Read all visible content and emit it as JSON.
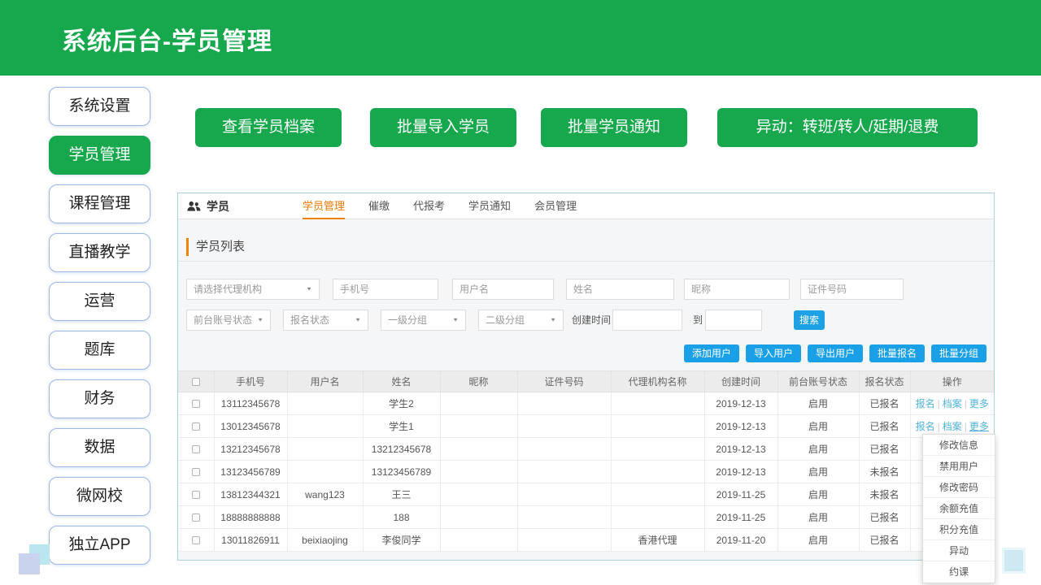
{
  "header": {
    "title": "系统后台-学员管理"
  },
  "sidebar": {
    "items": [
      {
        "label": "系统设置",
        "active": false
      },
      {
        "label": "学员管理",
        "active": true
      },
      {
        "label": "课程管理",
        "active": false
      },
      {
        "label": "直播教学",
        "active": false
      },
      {
        "label": "运营",
        "active": false
      },
      {
        "label": "题库",
        "active": false
      },
      {
        "label": "财务",
        "active": false
      },
      {
        "label": "数据",
        "active": false
      },
      {
        "label": "微网校",
        "active": false
      },
      {
        "label": "独立APP",
        "active": false
      }
    ]
  },
  "quick_actions": {
    "view_archive": "查看学员档案",
    "batch_import": "批量导入学员",
    "batch_notify": "批量学员通知",
    "change": "异动：转班/转人/延期/退费"
  },
  "panel": {
    "module_label": "学员",
    "tabs": [
      {
        "label": "学员管理",
        "active": true
      },
      {
        "label": "催缴",
        "active": false
      },
      {
        "label": "代报考",
        "active": false
      },
      {
        "label": "学员通知",
        "active": false
      },
      {
        "label": "会员管理",
        "active": false
      }
    ],
    "section_title": "学员列表",
    "filters": {
      "agency_select": "请选择代理机构",
      "phone_placeholder": "手机号",
      "username_placeholder": "用户名",
      "name_placeholder": "姓名",
      "nickname_placeholder": "昵称",
      "cert_placeholder": "证件号码",
      "account_status_select": "前台账号状态",
      "reg_status_select": "报名状态",
      "group1_select": "一级分组",
      "group2_select": "二级分组",
      "created_label": "创建时间",
      "to_label": "到",
      "search_button": "搜索"
    },
    "bulk_buttons": [
      "添加用户",
      "导入用户",
      "导出用户",
      "批量报名",
      "批量分组"
    ],
    "table": {
      "columns": [
        "手机号",
        "用户名",
        "姓名",
        "昵称",
        "证件号码",
        "代理机构名称",
        "创建时间",
        "前台账号状态",
        "报名状态",
        "操作"
      ],
      "rows": [
        {
          "phone": "13112345678",
          "username": "",
          "name": "学生2",
          "nickname": "",
          "cert_no": "",
          "agency": "",
          "created": "2019-12-13",
          "account_status": "启用",
          "reg_status": "已报名",
          "reg_red": false,
          "actions": [
            "报名",
            "档案",
            "更多"
          ],
          "more_active": false
        },
        {
          "phone": "13012345678",
          "username": "",
          "name": "学生1",
          "nickname": "",
          "cert_no": "",
          "agency": "",
          "created": "2019-12-13",
          "account_status": "启用",
          "reg_status": "已报名",
          "reg_red": false,
          "actions": [
            "报名",
            "档案",
            "更多"
          ],
          "more_active": true
        },
        {
          "phone": "13212345678",
          "username": "",
          "name": "13212345678",
          "nickname": "",
          "cert_no": "",
          "agency": "",
          "created": "2019-12-13",
          "account_status": "启用",
          "reg_status": "已报名",
          "reg_red": false,
          "actions": [],
          "more_active": false
        },
        {
          "phone": "13123456789",
          "username": "",
          "name": "13123456789",
          "nickname": "",
          "cert_no": "",
          "agency": "",
          "created": "2019-12-13",
          "account_status": "启用",
          "reg_status": "未报名",
          "reg_red": true,
          "actions": [],
          "more_active": false
        },
        {
          "phone": "13812344321",
          "username": "wang123",
          "name": "王三",
          "nickname": "",
          "cert_no": "",
          "agency": "",
          "created": "2019-11-25",
          "account_status": "启用",
          "reg_status": "未报名",
          "reg_red": true,
          "actions": [],
          "more_active": false
        },
        {
          "phone": "18888888888",
          "username": "",
          "name": "188",
          "nickname": "",
          "cert_no": "",
          "agency": "",
          "created": "2019-11-25",
          "account_status": "启用",
          "reg_status": "已报名",
          "reg_red": false,
          "actions": [],
          "more_active": false
        },
        {
          "phone": "13011826911",
          "username": "beixiaojing",
          "name": "李俊同学",
          "nickname": "",
          "cert_no": "",
          "agency": "香港代理",
          "created": "2019-11-20",
          "account_status": "启用",
          "reg_status": "已报名",
          "reg_red": false,
          "actions": [],
          "more_active": false
        }
      ]
    },
    "more_menu": [
      "修改信息",
      "禁用用户",
      "修改密码",
      "余额充值",
      "积分充值",
      "异动",
      "约课"
    ]
  },
  "colors": {
    "brand_green": "#17a84e",
    "accent_orange": "#f08300",
    "action_blue": "#1aa0e6",
    "link_blue": "#4fb3d9",
    "danger_red": "#e04a3f"
  }
}
